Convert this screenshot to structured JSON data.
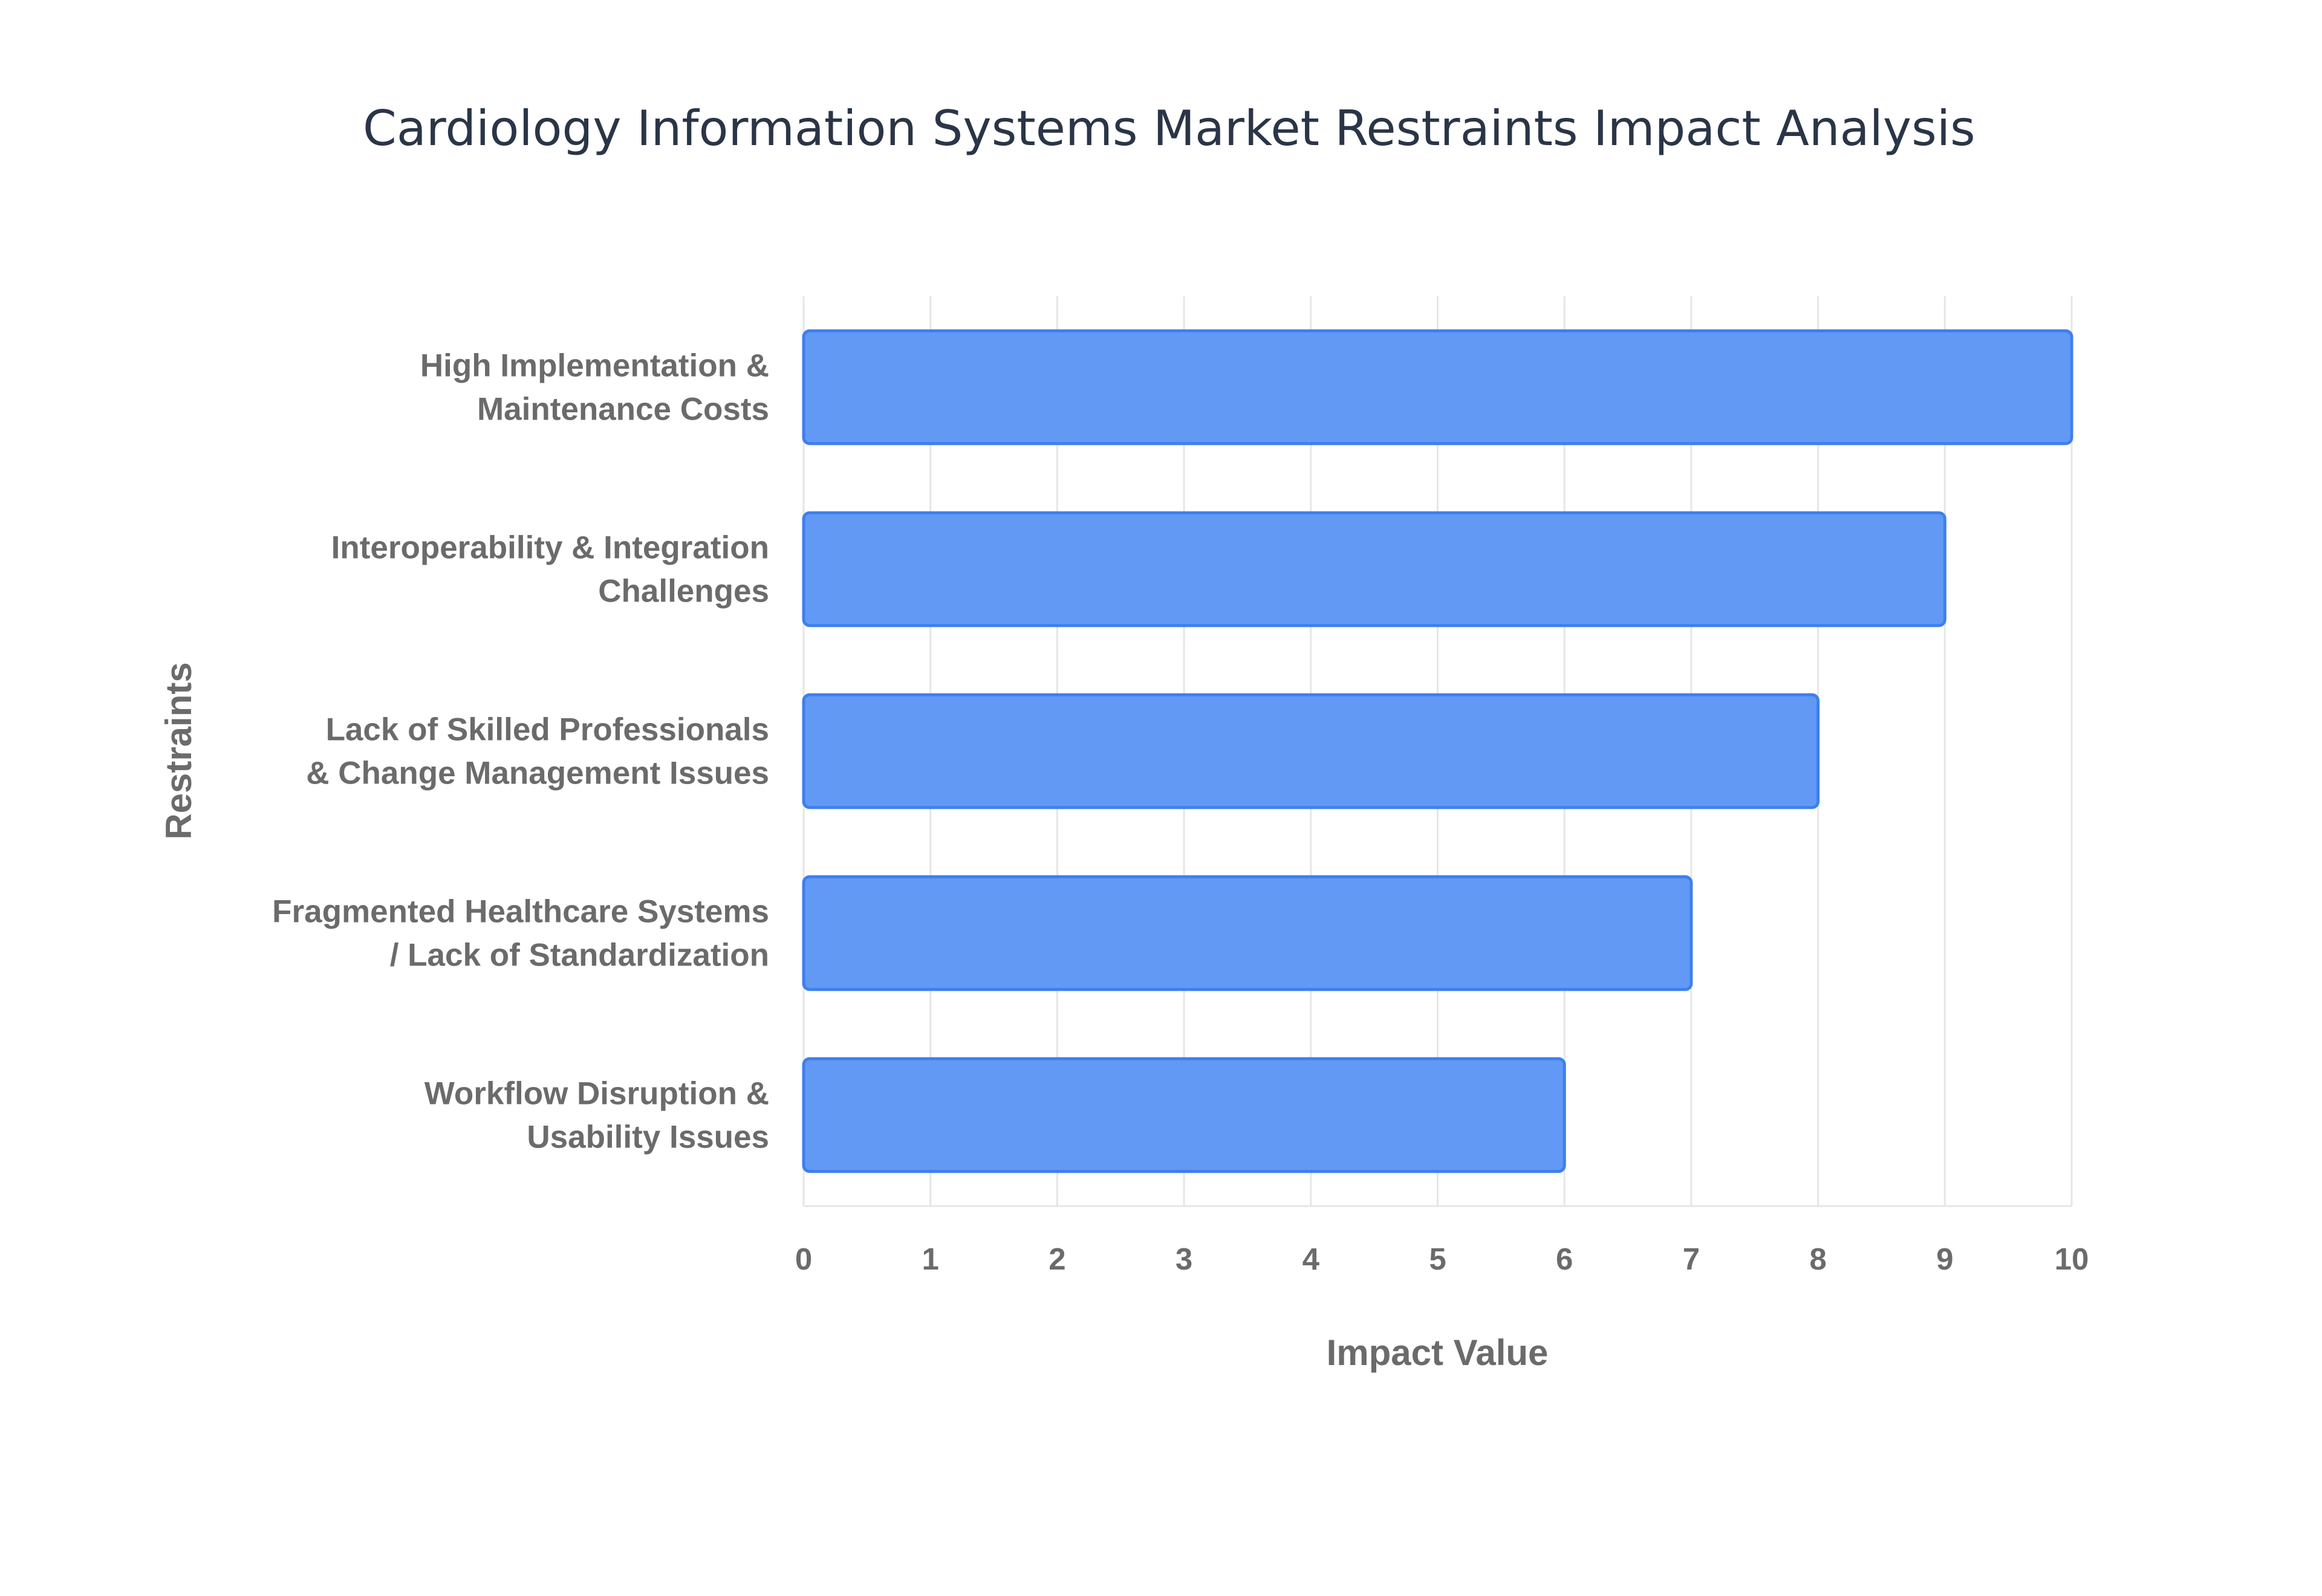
{
  "chart_data": {
    "type": "bar",
    "orientation": "horizontal",
    "title": "Cardiology Information Systems Market Restraints Impact Analysis",
    "xlabel": "Impact Value",
    "ylabel": "Restraints",
    "categories": [
      [
        "High Implementation &",
        "Maintenance Costs"
      ],
      [
        "Interoperability & Integration",
        "Challenges"
      ],
      [
        "Lack of Skilled Professionals",
        "& Change Management Issues"
      ],
      [
        "Fragmented Healthcare Systems",
        "/ Lack of Standardization"
      ],
      [
        "Workflow Disruption &",
        "Usability Issues"
      ]
    ],
    "values": [
      10,
      9,
      8,
      7,
      6
    ],
    "xlim": [
      0,
      10
    ],
    "xticks": [
      0,
      1,
      2,
      3,
      4,
      5,
      6,
      7,
      8,
      9,
      10
    ],
    "grid": true,
    "legend": "none",
    "colors": {
      "bar_fill": "#6199f4",
      "bar_stroke": "#3f7fee",
      "grid": "#e6e6e6",
      "text": "#6b6b6b",
      "title": "#2a3547"
    }
  }
}
